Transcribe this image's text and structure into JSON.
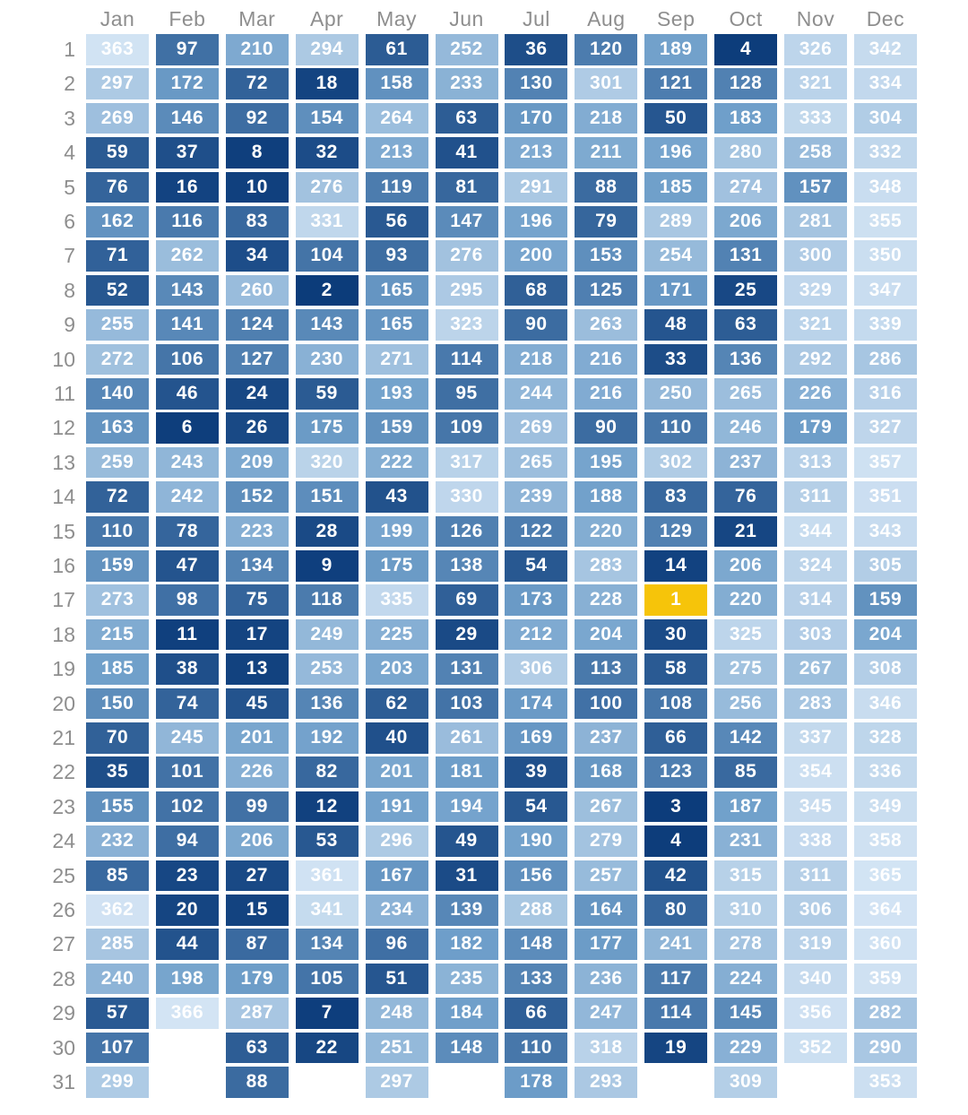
{
  "chart_data": {
    "type": "heatmap",
    "title": "",
    "columns": [
      "Jan",
      "Feb",
      "Mar",
      "Apr",
      "May",
      "Jun",
      "Jul",
      "Aug",
      "Sep",
      "Oct",
      "Nov",
      "Dec"
    ],
    "rows": [
      1,
      2,
      3,
      4,
      5,
      6,
      7,
      8,
      9,
      10,
      11,
      12,
      13,
      14,
      15,
      16,
      17,
      18,
      19,
      20,
      21,
      22,
      23,
      24,
      25,
      26,
      27,
      28,
      29,
      30,
      31
    ],
    "value_range": [
      1,
      366
    ],
    "legend": "none",
    "grid": "white gaps between cells",
    "series": [
      {
        "name": "Jan",
        "values": [
          363,
          297,
          269,
          59,
          76,
          162,
          71,
          52,
          255,
          272,
          140,
          163,
          259,
          72,
          110,
          159,
          273,
          215,
          185,
          150,
          70,
          35,
          155,
          232,
          85,
          362,
          285,
          240,
          57,
          107,
          299
        ]
      },
      {
        "name": "Feb",
        "values": [
          97,
          172,
          146,
          37,
          16,
          116,
          262,
          143,
          141,
          106,
          46,
          6,
          243,
          242,
          78,
          47,
          98,
          11,
          38,
          74,
          245,
          101,
          102,
          94,
          23,
          20,
          44,
          198,
          366,
          null,
          null
        ]
      },
      {
        "name": "Mar",
        "values": [
          210,
          72,
          92,
          8,
          10,
          83,
          34,
          260,
          124,
          127,
          24,
          26,
          209,
          152,
          223,
          134,
          75,
          17,
          13,
          45,
          201,
          226,
          99,
          206,
          27,
          15,
          87,
          179,
          287,
          63,
          88
        ]
      },
      {
        "name": "Apr",
        "values": [
          294,
          18,
          154,
          32,
          276,
          331,
          104,
          2,
          143,
          230,
          59,
          175,
          320,
          151,
          28,
          9,
          118,
          249,
          253,
          136,
          192,
          82,
          12,
          53,
          361,
          341,
          134,
          105,
          7,
          22,
          null
        ]
      },
      {
        "name": "May",
        "values": [
          61,
          158,
          264,
          213,
          119,
          56,
          93,
          165,
          165,
          271,
          193,
          159,
          222,
          43,
          199,
          175,
          335,
          225,
          203,
          62,
          40,
          201,
          191,
          296,
          167,
          234,
          96,
          51,
          248,
          251,
          297
        ]
      },
      {
        "name": "Jun",
        "values": [
          252,
          233,
          63,
          41,
          81,
          147,
          276,
          295,
          323,
          114,
          95,
          109,
          317,
          330,
          126,
          138,
          69,
          29,
          131,
          103,
          261,
          181,
          194,
          49,
          31,
          139,
          182,
          235,
          184,
          148,
          null
        ]
      },
      {
        "name": "Jul",
        "values": [
          36,
          130,
          170,
          213,
          291,
          196,
          200,
          68,
          90,
          218,
          244,
          269,
          265,
          239,
          122,
          54,
          173,
          212,
          306,
          174,
          169,
          39,
          54,
          190,
          156,
          288,
          148,
          133,
          66,
          110,
          178
        ]
      },
      {
        "name": "Aug",
        "values": [
          120,
          301,
          218,
          211,
          88,
          79,
          153,
          125,
          263,
          216,
          216,
          90,
          195,
          188,
          220,
          283,
          228,
          204,
          113,
          100,
          237,
          168,
          267,
          279,
          257,
          164,
          177,
          236,
          247,
          318,
          293
        ]
      },
      {
        "name": "Sep",
        "values": [
          189,
          121,
          50,
          196,
          185,
          289,
          254,
          171,
          48,
          33,
          250,
          110,
          302,
          83,
          129,
          14,
          1,
          30,
          58,
          108,
          66,
          123,
          3,
          4,
          42,
          80,
          241,
          117,
          114,
          19,
          null
        ]
      },
      {
        "name": "Oct",
        "values": [
          4,
          128,
          183,
          280,
          274,
          206,
          131,
          25,
          63,
          136,
          265,
          246,
          237,
          76,
          21,
          206,
          220,
          325,
          275,
          256,
          142,
          85,
          187,
          231,
          315,
          310,
          278,
          224,
          145,
          229,
          309
        ]
      },
      {
        "name": "Nov",
        "values": [
          326,
          321,
          333,
          258,
          157,
          281,
          300,
          329,
          321,
          292,
          226,
          179,
          313,
          311,
          344,
          324,
          314,
          303,
          267,
          283,
          337,
          354,
          345,
          338,
          311,
          306,
          319,
          340,
          356,
          352,
          null
        ]
      },
      {
        "name": "Dec",
        "values": [
          342,
          334,
          304,
          332,
          348,
          355,
          350,
          347,
          339,
          286,
          316,
          327,
          357,
          351,
          343,
          305,
          159,
          204,
          308,
          346,
          328,
          336,
          349,
          358,
          365,
          364,
          360,
          359,
          282,
          290,
          353
        ]
      }
    ],
    "highlight_cell": {
      "month": "Sep",
      "day": 17,
      "value": 1,
      "color": "#f6c40a"
    },
    "colors": {
      "scale_low": "#0b3b7a",
      "scale_mid": "#6f9fca",
      "scale_high": "#d3e4f4",
      "highlight": "#f6c40a",
      "cell_text": "#ffffff",
      "axis_label": "#8e8e8e",
      "background": "#ffffff"
    }
  }
}
